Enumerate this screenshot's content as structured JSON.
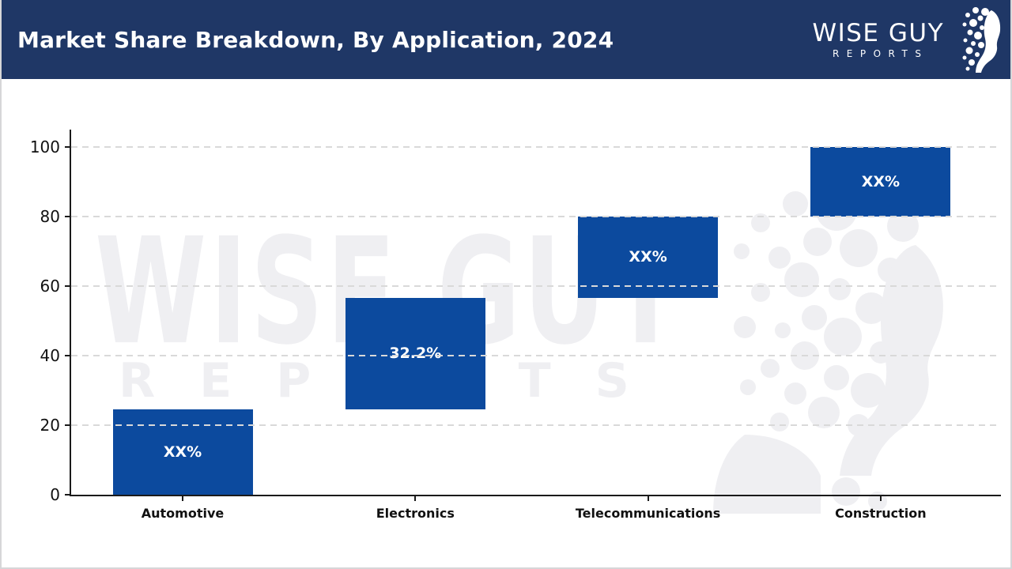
{
  "header": {
    "title": "Market Share Breakdown, By Application, 2024",
    "logo": {
      "line1": "WISE GUY",
      "line2": "REPORTS"
    }
  },
  "watermark": {
    "line1": "WISE GUY",
    "line2": "REPORTS"
  },
  "colors": {
    "header_bg": "#1f3766",
    "bar_blue": "#0c4a9e",
    "gridline_grey": "#d9d9d9",
    "watermark_grey": "#efeff2"
  },
  "chart_data": {
    "type": "bar",
    "variant": "waterfall",
    "title": "Market Share Breakdown, By Application, 2024",
    "categories": [
      "Automotive",
      "Electronics",
      "Telecommunications",
      "Construction"
    ],
    "segments": [
      {
        "category": "Automotive",
        "start": 0,
        "end": 24.5,
        "label": "XX%"
      },
      {
        "category": "Electronics",
        "start": 24.5,
        "end": 56.7,
        "label": "32.2%"
      },
      {
        "category": "Telecommunications",
        "start": 56.7,
        "end": 80,
        "label": "XX%"
      },
      {
        "category": "Construction",
        "start": 80,
        "end": 100,
        "label": "XX%"
      }
    ],
    "xlabel": "",
    "ylabel": "",
    "ylim": [
      0,
      100
    ],
    "yticks": [
      0,
      20,
      40,
      60,
      80,
      100
    ],
    "grid": "horizontal-dashed",
    "legend": "none",
    "bar_color": "#0c4a9e"
  }
}
